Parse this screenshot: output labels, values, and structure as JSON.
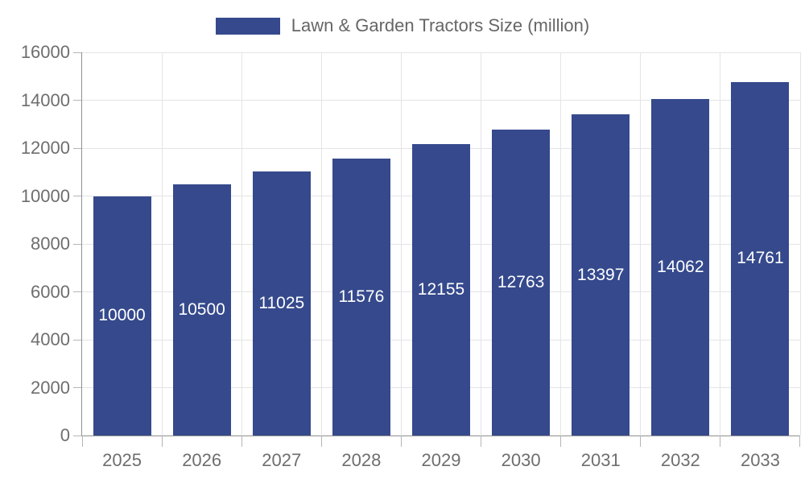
{
  "chart_data": {
    "type": "bar",
    "title": "Lawn & Garden Tractors Size (million)",
    "categories": [
      "2025",
      "2026",
      "2027",
      "2028",
      "2029",
      "2030",
      "2031",
      "2032",
      "2033"
    ],
    "series": [
      {
        "name": "Lawn & Garden Tractors Size (million)",
        "values": [
          10000,
          10500,
          11025,
          11576,
          12155,
          12763,
          13397,
          14062,
          14761
        ]
      }
    ],
    "xlabel": "",
    "ylabel": "",
    "ylim": [
      0,
      16000
    ],
    "ytick_step": 2000,
    "grid": true,
    "legend_position": "top-center",
    "value_labels": "centered-inside-bars",
    "colors": {
      "bar": "#35498c",
      "value_label": "#ffffff",
      "axis_text": "#6e6e6e",
      "legend_text": "#666666",
      "grid_line": "#e4e4e8",
      "axis_line": "#909090",
      "tick": "#b5b5b5",
      "background": "#ffffff"
    }
  }
}
